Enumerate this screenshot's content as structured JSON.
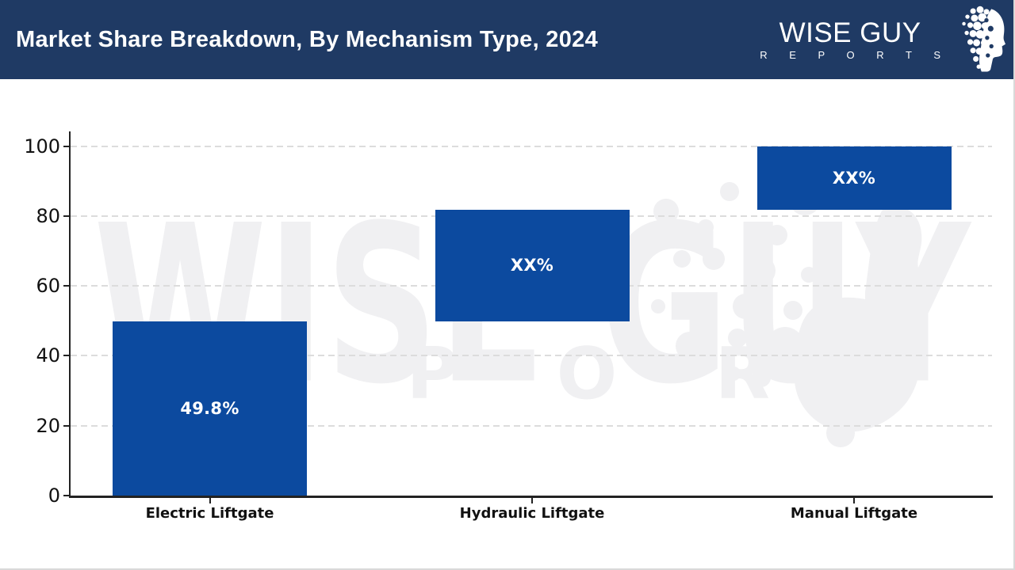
{
  "header": {
    "title": "Market Share Breakdown, By Mechanism Type, 2024",
    "brand": {
      "name": "WISE GUY",
      "sub": "R E P O R T S"
    }
  },
  "watermark": {
    "line1": "WISE GUY",
    "line2": "R E P O R T S"
  },
  "chart_data": {
    "type": "bar",
    "subtype": "stacked-waterfall-percentage",
    "title": "Market Share Breakdown, By Mechanism Type, 2024",
    "categories": [
      "Electric Liftgate",
      "Hydraulic Liftgate",
      "Manual Liftgate"
    ],
    "series": [
      {
        "name": "Market Share",
        "segments": [
          {
            "category": "Electric Liftgate",
            "start": 0,
            "end": 49.8,
            "value": 49.8,
            "label": "49.8%"
          },
          {
            "category": "Hydraulic Liftgate",
            "start": 49.8,
            "end": 81.8,
            "value": 32.0,
            "label": "XX%"
          },
          {
            "category": "Manual Liftgate",
            "start": 81.8,
            "end": 100,
            "value": 18.2,
            "label": "XX%"
          }
        ]
      }
    ],
    "xlabel": "",
    "ylabel": "",
    "ylim": [
      0,
      100
    ],
    "yticks": [
      0,
      20,
      40,
      60,
      80,
      100
    ],
    "grid": "horizontal-dashed",
    "legend": "none",
    "colors": {
      "bar": "#0c4a9f",
      "bar_label": "#ffffff",
      "grid": "#dcdcdc",
      "axis": "#222222",
      "tick_label": "#111111"
    }
  },
  "colors": {
    "header_bg": "#1f3a64",
    "header_text": "#ffffff",
    "watermark": "#f0f0f2",
    "page_bg": "#ffffff",
    "frame_border": "#d9d9d9"
  }
}
